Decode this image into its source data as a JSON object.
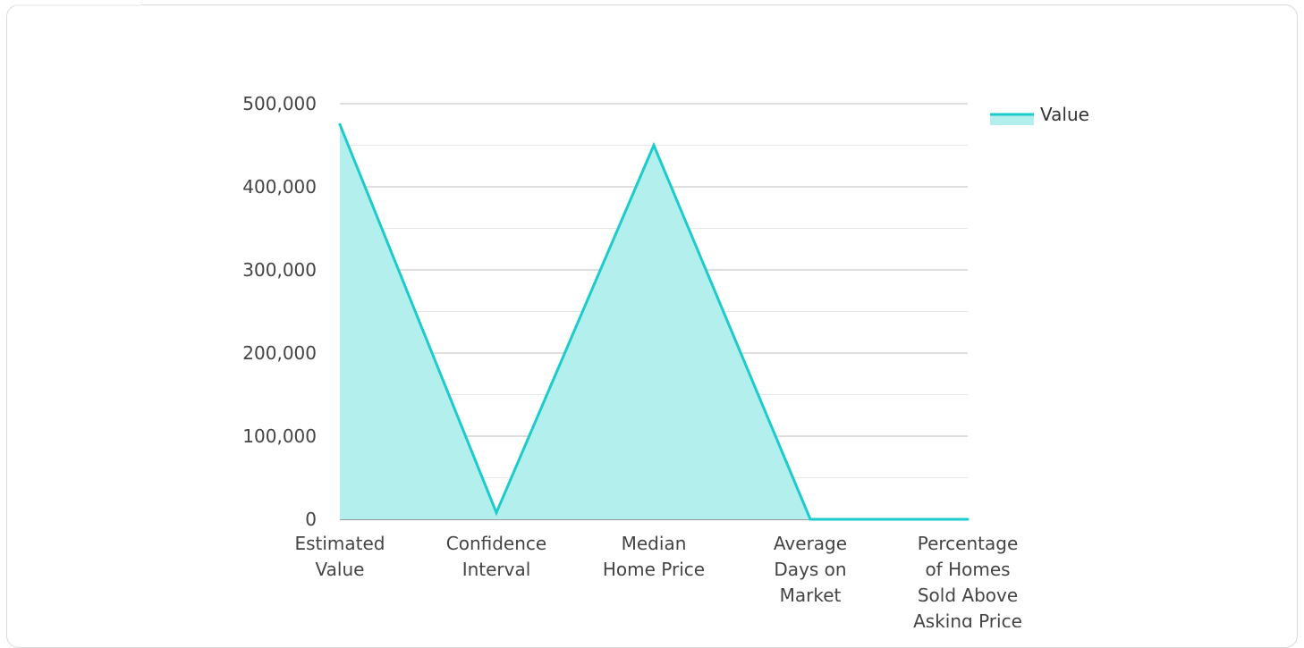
{
  "chart_data": {
    "type": "area",
    "categories": [
      [
        "Estimated",
        "Value"
      ],
      [
        "Confidence",
        "Interval"
      ],
      [
        "Median",
        "Home Price"
      ],
      [
        "Average",
        "Days on",
        "Market"
      ],
      [
        "Percentage",
        "of Homes",
        "Sold Above",
        "Asking Price"
      ]
    ],
    "series": [
      {
        "name": "Value",
        "values": [
          475000,
          8000,
          450000,
          0,
          0
        ]
      }
    ],
    "ylim": [
      0,
      500000
    ],
    "yticks": [
      0,
      100000,
      200000,
      300000,
      400000,
      500000
    ],
    "ytick_labels": [
      "0",
      "100,000",
      "200,000",
      "300,000",
      "400,000",
      "500,000"
    ],
    "grid": true,
    "legend": "top-right",
    "colors": {
      "line": "#1ccbcb",
      "fill": "#b2efed",
      "grid_major": "#bdbdbd",
      "grid_minor": "#e6e6e6"
    }
  }
}
